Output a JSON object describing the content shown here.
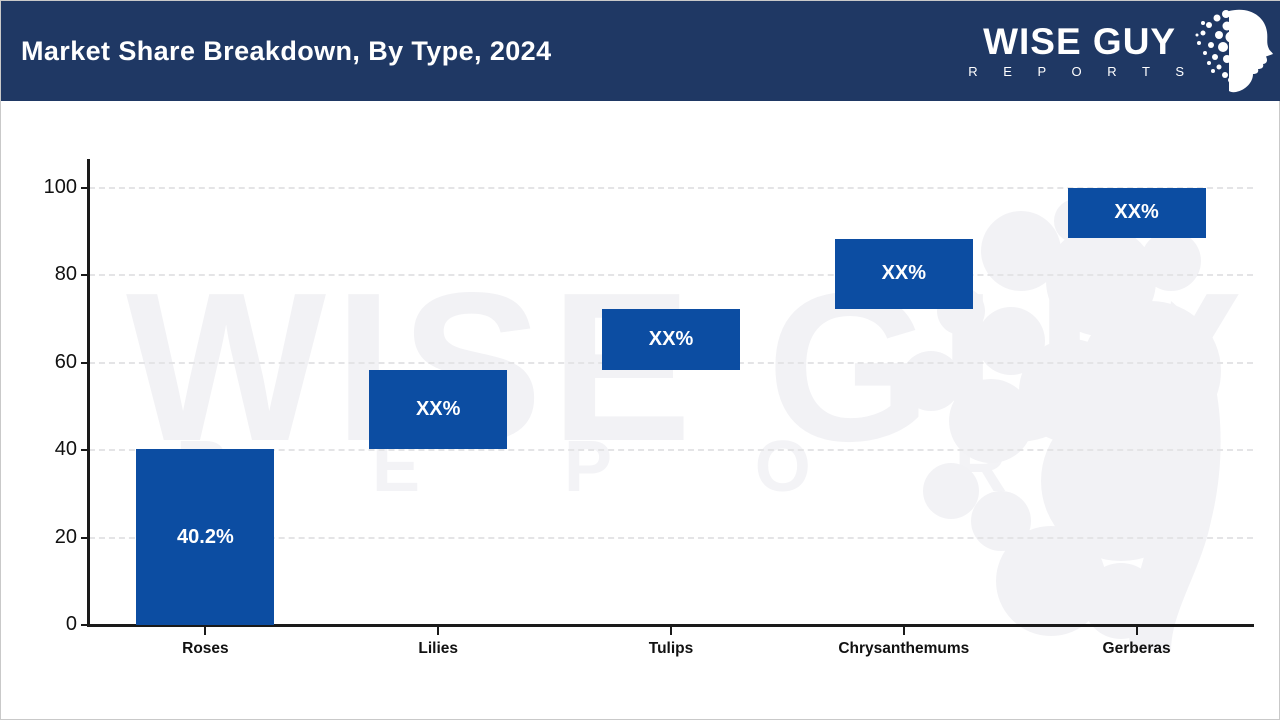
{
  "header": {
    "title": "Market Share Breakdown, By Type, 2024",
    "background_color": "#1f3864",
    "logo": {
      "line1": "WISE GUY",
      "line2": "R E P O R T S",
      "face_icon": "head-profile-dots-icon"
    }
  },
  "watermark": {
    "line1": "WISE GUY",
    "line2": "R E P O R T S",
    "face_icon": "head-profile-dots-watermark"
  },
  "chart_data": {
    "type": "bar",
    "subtype": "waterfall",
    "title": "Market Share Breakdown, By Type, 2024",
    "categories": [
      "Roses",
      "Lilies",
      "Tulips",
      "Chrysanthemums",
      "Gerberas"
    ],
    "segments": [
      {
        "category": "Roses",
        "start": 0,
        "end": 40.2,
        "label": "40.2%"
      },
      {
        "category": "Lilies",
        "start": 40.2,
        "end": 58.3,
        "label": "XX%"
      },
      {
        "category": "Tulips",
        "start": 58.3,
        "end": 72.2,
        "label": "XX%"
      },
      {
        "category": "Chrysanthemums",
        "start": 72.4,
        "end": 88.3,
        "label": "XX%"
      },
      {
        "category": "Gerberas",
        "start": 88.6,
        "end": 100,
        "label": "XX%"
      }
    ],
    "y_ticks": [
      0,
      20,
      40,
      60,
      80,
      100
    ],
    "ylim": [
      0,
      105
    ],
    "xlabel": "",
    "ylabel": "",
    "grid": "horizontal-dashed",
    "legend": "none",
    "bar_color": "#0c4da2",
    "value_label_color": "#ffffff"
  }
}
